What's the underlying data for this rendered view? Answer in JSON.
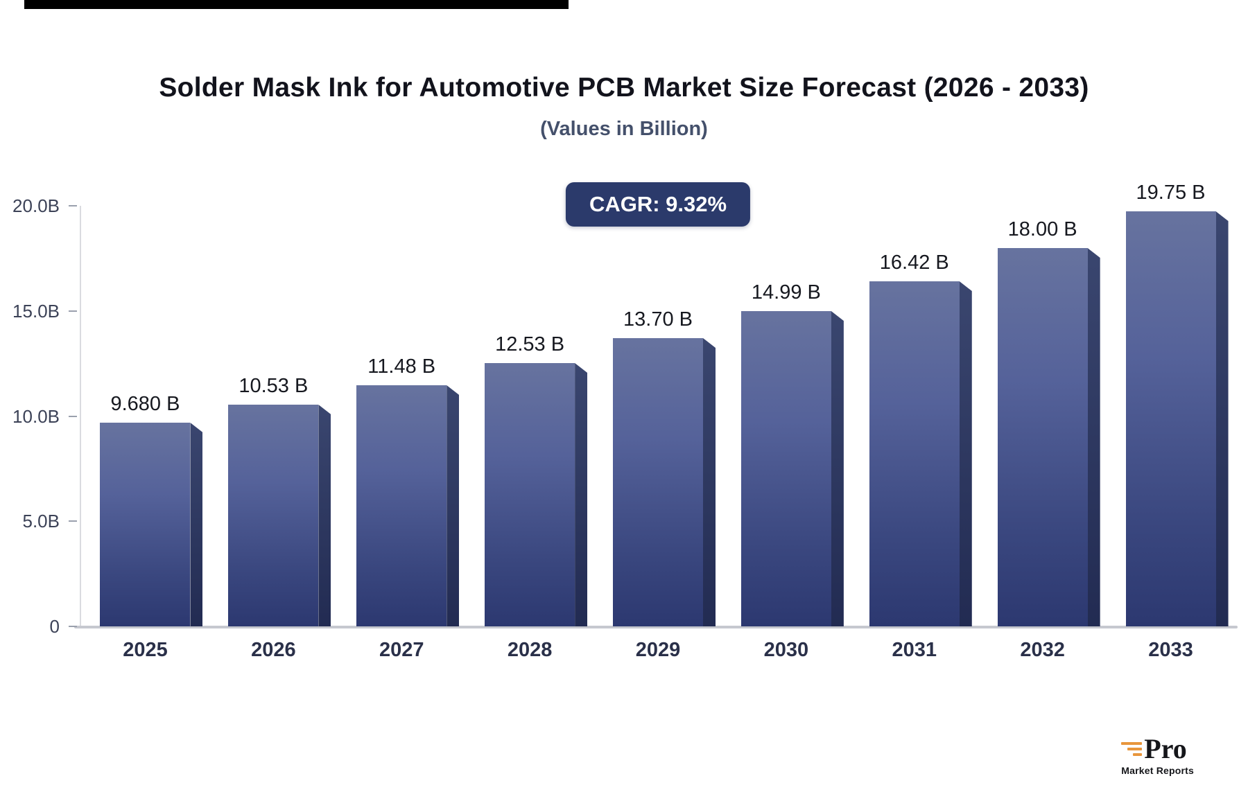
{
  "page": {
    "title": "Solder Mask Ink for Automotive PCB Market Size Forecast (2026 - 2033)",
    "subtitle": "(Values in Billion)",
    "cagr_label": "CAGR: 9.32%"
  },
  "chart_data": {
    "type": "bar",
    "title": "Solder Mask Ink for Automotive PCB Market Size Forecast (2026 - 2033)",
    "subtitle": "(Values in Billion)",
    "cagr": "CAGR: 9.32%",
    "categories": [
      "2025",
      "2026",
      "2027",
      "2028",
      "2029",
      "2030",
      "2031",
      "2032",
      "2033"
    ],
    "values": [
      9.68,
      10.53,
      11.48,
      12.53,
      13.7,
      14.99,
      16.42,
      18.0,
      19.75
    ],
    "value_labels": [
      "9.680 B",
      "10.53 B",
      "11.48 B",
      "12.53 B",
      "13.70 B",
      "14.99 B",
      "16.42 B",
      "18.00 B",
      "19.75 B"
    ],
    "xlabel": "",
    "ylabel": "",
    "ylim": [
      0,
      20
    ],
    "yticks": [
      {
        "value": 20,
        "label": "20.0B"
      },
      {
        "value": 15,
        "label": "15.0B"
      },
      {
        "value": 10,
        "label": "10.0B"
      },
      {
        "value": 5,
        "label": "5.0B"
      },
      {
        "value": 0,
        "label": "0"
      }
    ],
    "grid": false,
    "legend": "none",
    "colors": {
      "bar_top": "#67739f",
      "bar_bottom": "#2c3870",
      "bar_side": "#222b52",
      "badge_background": "#2b3a6b",
      "badge_text": "#ffffff",
      "axis": "#c6c8cf"
    }
  },
  "logo": {
    "brand": "Pro",
    "brand_sub": "Market Reports",
    "accent": "#e8963c"
  }
}
